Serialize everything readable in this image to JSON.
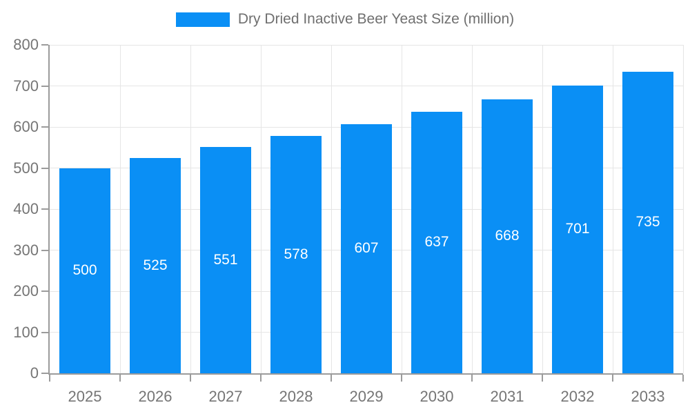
{
  "chart_data": {
    "type": "bar",
    "title": "Dry Dried Inactive Beer Yeast Size (million)",
    "categories": [
      "2025",
      "2026",
      "2027",
      "2028",
      "2029",
      "2030",
      "2031",
      "2032",
      "2033"
    ],
    "values": [
      500,
      525,
      551,
      578,
      607,
      637,
      668,
      701,
      735
    ],
    "xlabel": "",
    "ylabel": "",
    "ylim": [
      0,
      800
    ],
    "ytick_step": 100,
    "ytick_labels": [
      "0",
      "100",
      "200",
      "300",
      "400",
      "500",
      "600",
      "700",
      "800"
    ],
    "grid": true,
    "legend_position": "top-center",
    "value_labels_inside_bars": true,
    "colors": {
      "bar": "#0a8ff5",
      "value_label": "#ffffff",
      "axis_text": "#757575",
      "legend_text": "#6f6f6f",
      "grid_line": "#e5e5e5",
      "axis_line": "#9b9b9b"
    }
  }
}
